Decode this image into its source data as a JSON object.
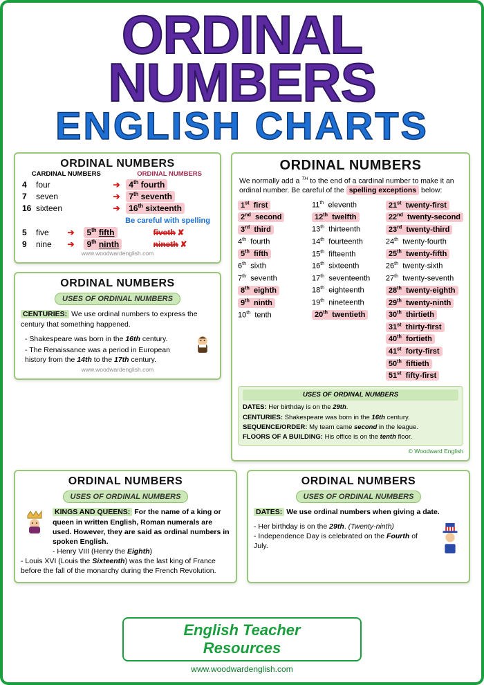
{
  "title": {
    "line1": "ORDINAL",
    "line2": "NUMBERS",
    "sub": "ENGLISH CHARTS"
  },
  "colors": {
    "border": "#1b9e3e",
    "title_purple": "#5b2aa0",
    "title_blue": "#1d6fd4",
    "highlight_pink": "#f7c9cf",
    "highlight_green": "#cde8b8",
    "red": "#d11a1a",
    "card_border": "#9bc77a"
  },
  "card_a": {
    "title": "ORDINAL NUMBERS",
    "col1_head": "CARDINAL NUMBERS",
    "col2_head": "ORDINAL NUMBERS",
    "rows_top": [
      {
        "n": "4",
        "word": "four",
        "ord": "4",
        "sup": "th",
        "oword": "fourth"
      },
      {
        "n": "7",
        "word": "seven",
        "ord": "7",
        "sup": "th",
        "oword": "seventh"
      },
      {
        "n": "16",
        "word": "sixteen",
        "ord": "16",
        "sup": "th",
        "oword": "sixteenth"
      }
    ],
    "careful": "Be careful with spelling",
    "rows_bot": [
      {
        "n": "5",
        "word": "five",
        "ord": "5",
        "sup": "th",
        "oword": "fifth",
        "wrong": "fiveth"
      },
      {
        "n": "9",
        "word": "nine",
        "ord": "9",
        "sup": "th",
        "oword": "ninth",
        "wrong": "nineth"
      }
    ],
    "credit": "www.woodwardenglish.com"
  },
  "card_b": {
    "title": "ORDINAL NUMBERS",
    "intro_a": "We normally add a ",
    "intro_sup": "TH",
    "intro_b": " to the end of a cardinal number to make it an ordinal number. Be careful of the ",
    "intro_hl": "spelling exceptions",
    "intro_c": " below:",
    "col1": [
      {
        "n": "1",
        "sup": "st",
        "w": "first",
        "hl": true
      },
      {
        "n": "2",
        "sup": "nd",
        "w": "second",
        "hl": true
      },
      {
        "n": "3",
        "sup": "rd",
        "w": "third",
        "hl": true
      },
      {
        "n": "4",
        "sup": "th",
        "w": "fourth"
      },
      {
        "n": "5",
        "sup": "th",
        "w": "fifth",
        "hl": true
      },
      {
        "n": "6",
        "sup": "th",
        "w": "sixth"
      },
      {
        "n": "7",
        "sup": "th",
        "w": "seventh"
      },
      {
        "n": "8",
        "sup": "th",
        "w": "eighth",
        "hl": true
      },
      {
        "n": "9",
        "sup": "th",
        "w": "ninth",
        "hl": true
      },
      {
        "n": "10",
        "sup": "th",
        "w": "tenth"
      }
    ],
    "col2": [
      {
        "n": "11",
        "sup": "th",
        "w": "eleventh"
      },
      {
        "n": "12",
        "sup": "th",
        "w": "twelfth",
        "hl": true
      },
      {
        "n": "13",
        "sup": "th",
        "w": "thirteenth"
      },
      {
        "n": "14",
        "sup": "th",
        "w": "fourteenth"
      },
      {
        "n": "15",
        "sup": "th",
        "w": "fifteenth"
      },
      {
        "n": "16",
        "sup": "th",
        "w": "sixteenth"
      },
      {
        "n": "17",
        "sup": "th",
        "w": "seventeenth"
      },
      {
        "n": "18",
        "sup": "th",
        "w": "eighteenth"
      },
      {
        "n": "19",
        "sup": "th",
        "w": "nineteenth"
      },
      {
        "n": "20",
        "sup": "th",
        "w": "twentieth",
        "hl": true
      }
    ],
    "col3": [
      {
        "n": "21",
        "sup": "st",
        "w": "twenty-first",
        "hl": true
      },
      {
        "n": "22",
        "sup": "nd",
        "w": "twenty-second",
        "hl": true
      },
      {
        "n": "23",
        "sup": "rd",
        "w": "twenty-third",
        "hl": true
      },
      {
        "n": "24",
        "sup": "th",
        "w": "twenty-fourth"
      },
      {
        "n": "25",
        "sup": "th",
        "w": "twenty-fifth",
        "hl": true
      },
      {
        "n": "26",
        "sup": "th",
        "w": "twenty-sixth"
      },
      {
        "n": "27",
        "sup": "th",
        "w": "twenty-seventh"
      },
      {
        "n": "28",
        "sup": "th",
        "w": "twenty-eighth",
        "hl": true
      },
      {
        "n": "29",
        "sup": "th",
        "w": "twenty-ninth",
        "hl": true
      },
      {
        "n": "30",
        "sup": "th",
        "w": "thirtieth",
        "hl": true
      },
      {
        "n": "31",
        "sup": "st",
        "w": "thirty-first",
        "hl": true
      },
      {
        "n": "40",
        "sup": "th",
        "w": "fortieth",
        "hl": true
      },
      {
        "n": "41",
        "sup": "st",
        "w": "forty-first",
        "hl": true
      },
      {
        "n": "50",
        "sup": "th",
        "w": "fiftieth",
        "hl": true
      },
      {
        "n": "51",
        "sup": "st",
        "w": "fifty-first",
        "hl": true
      }
    ],
    "uses_title": "USES OF ORDINAL NUMBERS",
    "uses": [
      {
        "lbl": "DATES:",
        "txt": "Her birthday is on the ",
        "b": "29th",
        "after": "."
      },
      {
        "lbl": "CENTURIES:",
        "txt": "Shakespeare was born in the ",
        "b": "16th",
        "after": " century."
      },
      {
        "lbl": "SEQUENCE/ORDER:",
        "txt": "My team came ",
        "b": "second",
        "after": " in the league."
      },
      {
        "lbl": "FLOORS OF A BUILDING:",
        "txt": "His office is on the ",
        "b": "tenth",
        "after": " floor."
      }
    ],
    "credit": "© Woodward English"
  },
  "card_c": {
    "title": "ORDINAL NUMBERS",
    "pill": "USES OF ORDINAL NUMBERS",
    "lead_lbl": "CENTURIES:",
    "lead_txt": "We use ordinal numbers to express the century that something happened.",
    "ex1_a": "- Shakespeare was born in the ",
    "ex1_b": "16th",
    "ex1_c": " century.",
    "ex2_a": "- The Renaissance was a period in European history from the ",
    "ex2_b": "14th",
    "ex2_c": " to the ",
    "ex2_d": "17th",
    "ex2_e": " century.",
    "credit": "www.woodwardenglish.com"
  },
  "card_d": {
    "title": "ORDINAL NUMBERS",
    "pill": "USES OF ORDINAL NUMBERS",
    "lead_lbl": "KINGS AND QUEENS:",
    "lead_txt": "For the name of a king or queen in written English, Roman numerals are used. However, they are said as ordinal numbers in spoken English.",
    "ex1_a": "- Henry VIII (Henry the ",
    "ex1_b": "Eighth",
    "ex1_c": ")",
    "ex2_a": "- Louis XVI (Louis the ",
    "ex2_b": "Sixteenth",
    "ex2_c": ") was the last king of France before the fall of the monarchy during the French Revolution."
  },
  "card_e": {
    "title": "ORDINAL NUMBERS",
    "pill": "USES OF ORDINAL NUMBERS",
    "lead_lbl": "DATES:",
    "lead_txt": "We use ordinal numbers when giving a date.",
    "ex1_a": "- Her birthday is on the ",
    "ex1_b": "29th",
    "ex1_c": ".   ",
    "ex1_d": "(Twenty-ninth)",
    "ex2_a": "- Independence Day is celebrated on the ",
    "ex2_b": "Fourth",
    "ex2_c": " of July."
  },
  "footer": {
    "label": "English Teacher Resources",
    "url": "www.woodwardenglish.com"
  }
}
